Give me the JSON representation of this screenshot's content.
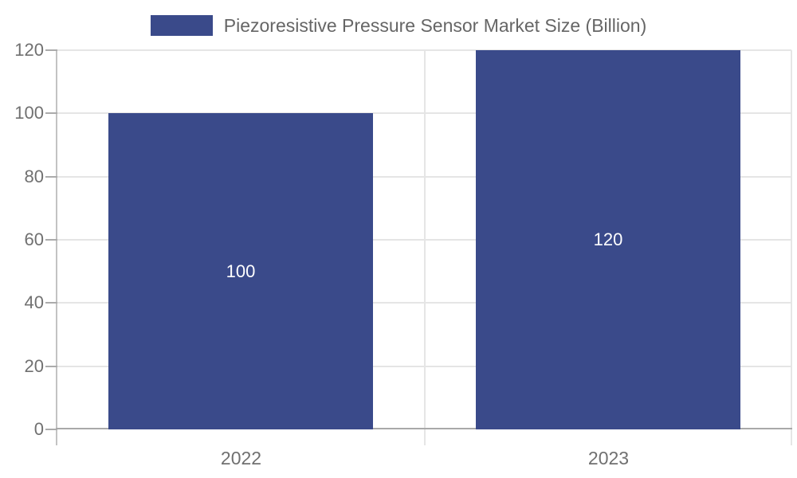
{
  "chart_data": {
    "type": "bar",
    "title": "",
    "categories": [
      "2022",
      "2023"
    ],
    "series": [
      {
        "name": "Piezoresistive Pressure Sensor Market Size (Billion)",
        "values": [
          100,
          120
        ]
      }
    ],
    "data_labels": [
      "100",
      "120"
    ],
    "data_label_position": "inside-center",
    "xlabel": "",
    "ylabel": "",
    "ylim": [
      0,
      120
    ],
    "yticks": [
      0,
      20,
      40,
      60,
      80,
      100,
      120
    ],
    "grid": "horizontal gridlines at each y tick; vertical gridlines at category boundaries",
    "legend": {
      "position": "top-center",
      "entries": [
        "Piezoresistive Pressure Sensor Market Size (Billion)"
      ]
    },
    "colors": {
      "bar": "#3A4A8A",
      "bar_label_text": "#FFFFFF",
      "grid_line": "#E5E5E5",
      "x_axis_line": "#A9A9A9",
      "y_axis_line": "#C3C3C3",
      "y_tick_mark": "#ABABAB",
      "tick_text": "#707070",
      "legend_text": "#666666"
    }
  }
}
